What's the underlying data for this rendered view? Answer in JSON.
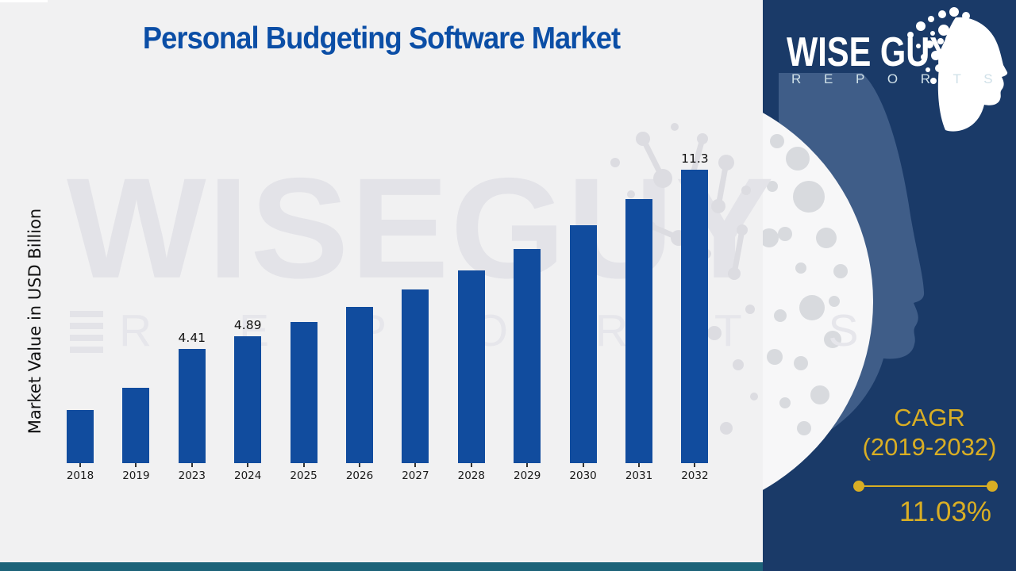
{
  "page": {
    "title": "Personal Budgeting Software Market"
  },
  "watermark": {
    "brand": "WISEGUY",
    "reports": "R E P O R T S"
  },
  "logo": {
    "brand": "WISE GUY",
    "reports": "R E P O R T S"
  },
  "cagr": {
    "heading": "CAGR",
    "range": "(2019-2032)",
    "value": "11.03%"
  },
  "colors": {
    "bar_blue": "#114c9e",
    "title_blue": "#0b4ea6",
    "panel_navy": "#1a3a68",
    "face_slate": "#3f5d88",
    "gold": "#d9ae24",
    "teal_strip": "#1d6379",
    "background_gray": "#f1f1f2"
  },
  "chart_data": {
    "type": "bar",
    "title": "Personal Budgeting Software Market",
    "xlabel": "",
    "ylabel": "Market Value in USD Billion",
    "categories": [
      "2018",
      "2019",
      "2023",
      "2024",
      "2025",
      "2026",
      "2027",
      "2028",
      "2029",
      "2030",
      "2031",
      "2032"
    ],
    "values": [
      2.05,
      2.9,
      4.41,
      4.89,
      5.43,
      6.03,
      6.7,
      7.44,
      8.26,
      9.17,
      10.18,
      11.3
    ],
    "annotations": {
      "2023": "4.41",
      "2024": "4.89",
      "2032": "11.3"
    },
    "bar_color": "#114c9e",
    "ylim": [
      0,
      12.5
    ],
    "grid": false,
    "legend": null
  }
}
